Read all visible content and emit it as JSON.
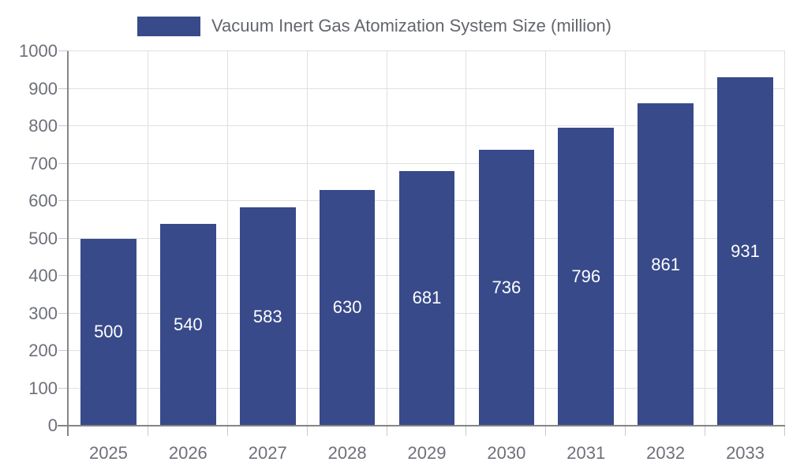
{
  "legend": {
    "label": "Vacuum Inert Gas Atomization System Size (million)"
  },
  "chart_data": {
    "type": "bar",
    "title": "Vacuum Inert Gas Atomization System Size (million)",
    "categories": [
      "2025",
      "2026",
      "2027",
      "2028",
      "2029",
      "2030",
      "2031",
      "2032",
      "2033"
    ],
    "values": [
      500,
      540,
      583,
      630,
      681,
      736,
      796,
      861,
      931
    ],
    "xlabel": "",
    "ylabel": "",
    "ylim": [
      0,
      1000
    ],
    "ytick_step": 100,
    "grid": true,
    "legend_position": "top-left",
    "bar_width_ratio": 0.7,
    "colors": {
      "bar": "#384A8A",
      "value_label": "#FFFFFF",
      "axis": "#858585",
      "gridline": "#E0E0E0",
      "tick": "#C9C9C9",
      "tick_label": "#6E7079",
      "legend_text": "#63666C",
      "background": "#FFFFFF"
    }
  }
}
